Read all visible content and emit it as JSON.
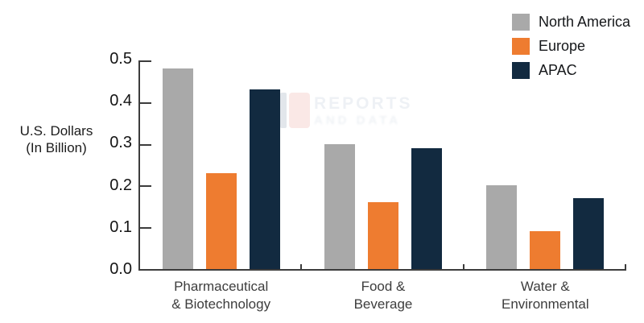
{
  "chart_data": {
    "type": "bar",
    "title": "",
    "categories": [
      "Pharmaceutical & Biotechnology",
      "Food & Beverage",
      "Water & Environmental"
    ],
    "category_tick_lines": [
      [
        "Pharmaceutical",
        "& Biotechnology"
      ],
      [
        "Food &",
        "Beverage"
      ],
      [
        "Water &",
        "Environmental"
      ]
    ],
    "series": [
      {
        "name": "North America",
        "color": "#a9a9a9",
        "values": [
          0.48,
          0.3,
          0.2
        ]
      },
      {
        "name": "Europe",
        "color": "#ee7c30",
        "values": [
          0.23,
          0.16,
          0.09
        ]
      },
      {
        "name": "APAC",
        "color": "#122a40",
        "values": [
          0.43,
          0.29,
          0.17
        ]
      }
    ],
    "xlabel": "",
    "ylabel": "U.S. Dollars (In Billion)",
    "ylabel_lines": [
      "U.S. Dollars",
      "(In Billion)"
    ],
    "ylim": [
      0,
      0.5
    ],
    "yticks": [
      "0.0",
      "0.1",
      "0.2",
      "0.3",
      "0.4",
      "0.5"
    ],
    "grid": false,
    "legend_position": "top-right",
    "axis_color": "#3c3c3c"
  },
  "watermark": {
    "line1": "REPORTS",
    "line2": "AND DATA"
  }
}
